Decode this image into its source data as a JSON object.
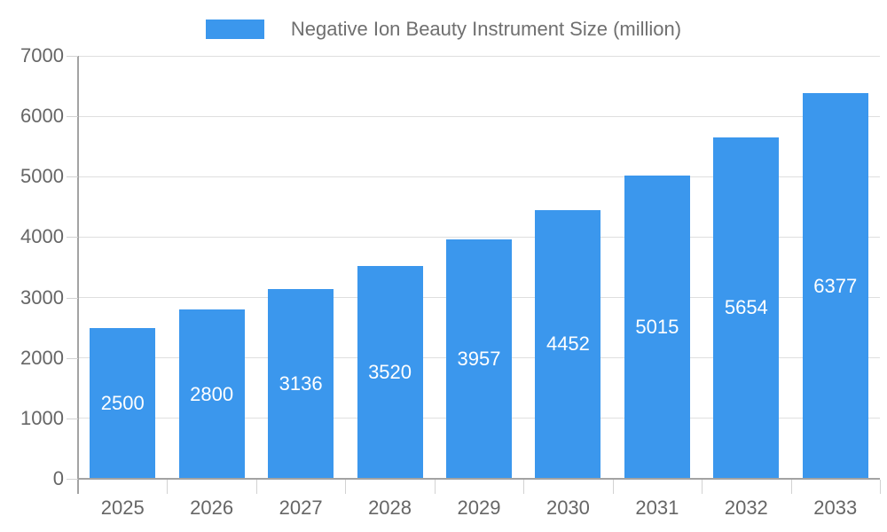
{
  "chart_data": {
    "type": "bar",
    "title": "Negative Ion Beauty Instrument Size (million)",
    "categories": [
      "2025",
      "2026",
      "2027",
      "2028",
      "2029",
      "2030",
      "2031",
      "2032",
      "2033"
    ],
    "values": [
      2500,
      2800,
      3136,
      3520,
      3957,
      4452,
      5015,
      5654,
      6377
    ],
    "series": [
      {
        "name": "Negative Ion Beauty Instrument Size (million)",
        "values": [
          2500,
          2800,
          3136,
          3520,
          3957,
          4452,
          5015,
          5654,
          6377
        ]
      }
    ],
    "xlabel": "",
    "ylabel": "",
    "ylim": [
      0,
      7000
    ],
    "yticks": [
      0,
      1000,
      2000,
      3000,
      4000,
      5000,
      6000,
      7000
    ],
    "grid": true,
    "legend_position": "top",
    "value_labels": "inside-center-white"
  },
  "colors": {
    "bar": "#3b97ed",
    "grid": "#dfdfdf",
    "tick": "#d2d2d2",
    "axis": "#a3a3a3",
    "axis_text": "#666666",
    "title_text": "#6f6f6f",
    "value_text": "#ffffff",
    "background": "#ffffff"
  }
}
